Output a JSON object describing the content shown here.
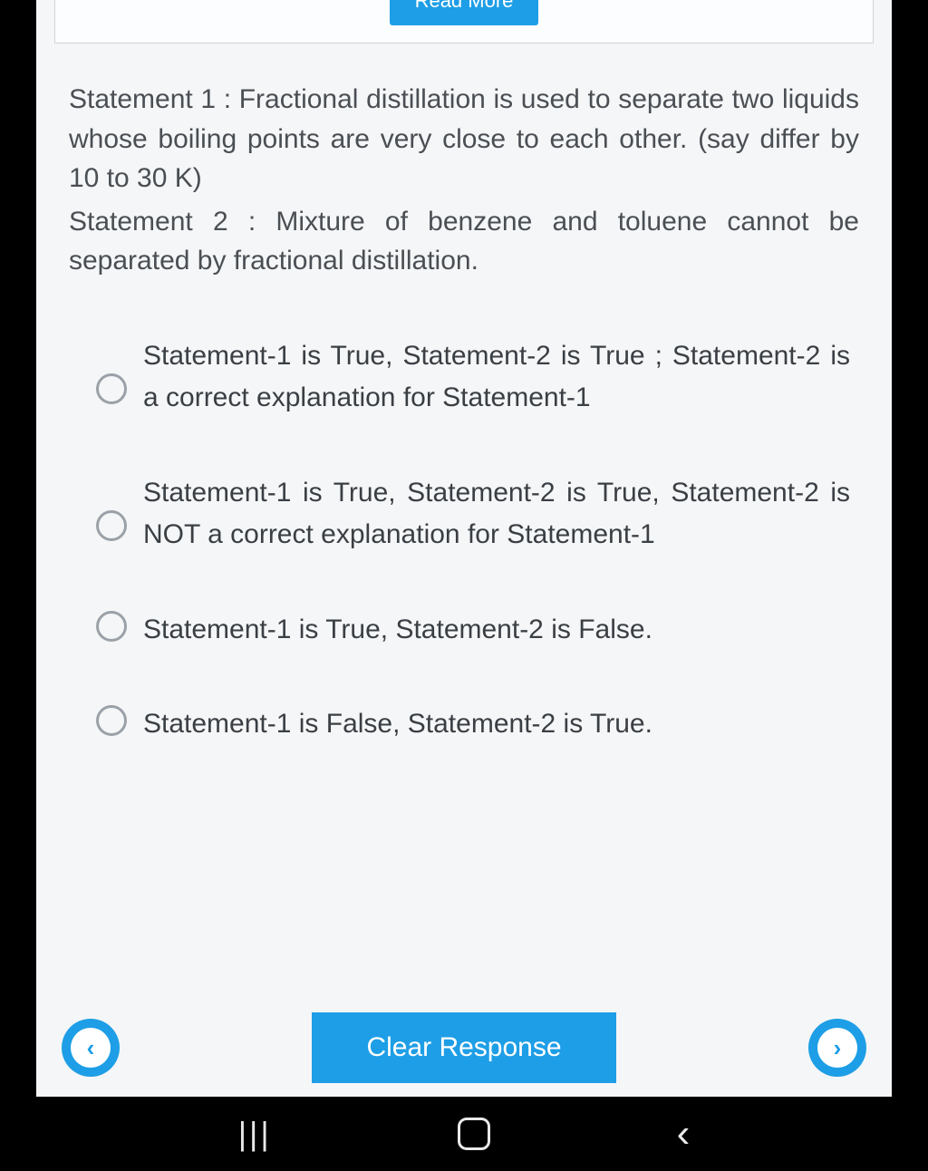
{
  "colors": {
    "primary": "#1e9ee6",
    "text": "#3a3f44",
    "radio_border": "#9aa1a8",
    "screen_bg": "#f5f6f7",
    "frame_bg": "#000000"
  },
  "buttons": {
    "read_more": "Read More",
    "clear_response": "Clear Response"
  },
  "question": {
    "statement1": "Statement 1 : Fractional distillation is used to separate two liquids whose boiling points are very close to each other. (say differ by 10 to 30 K)",
    "statement2": "Statement 2 : Mixture of benzene and toluene cannot be separated by fractional distillation."
  },
  "options": [
    {
      "text": "Statement-1 is True, Statement-2 is True ; Statement-2 is a correct explanation for Statement-1",
      "lines": "multi"
    },
    {
      "text": "Statement-1 is True, Statement-2 is True, Statement-2 is NOT a correct explanation for Statement-1",
      "lines": "multi"
    },
    {
      "text": "Statement-1 is True, Statement-2 is False.",
      "lines": "single"
    },
    {
      "text": "Statement-1 is False, Statement-2 is True.",
      "lines": "single"
    }
  ],
  "nav": {
    "prev_glyph": "‹",
    "next_glyph": "›"
  },
  "android_nav": {
    "recents": "|||",
    "back": "‹"
  }
}
